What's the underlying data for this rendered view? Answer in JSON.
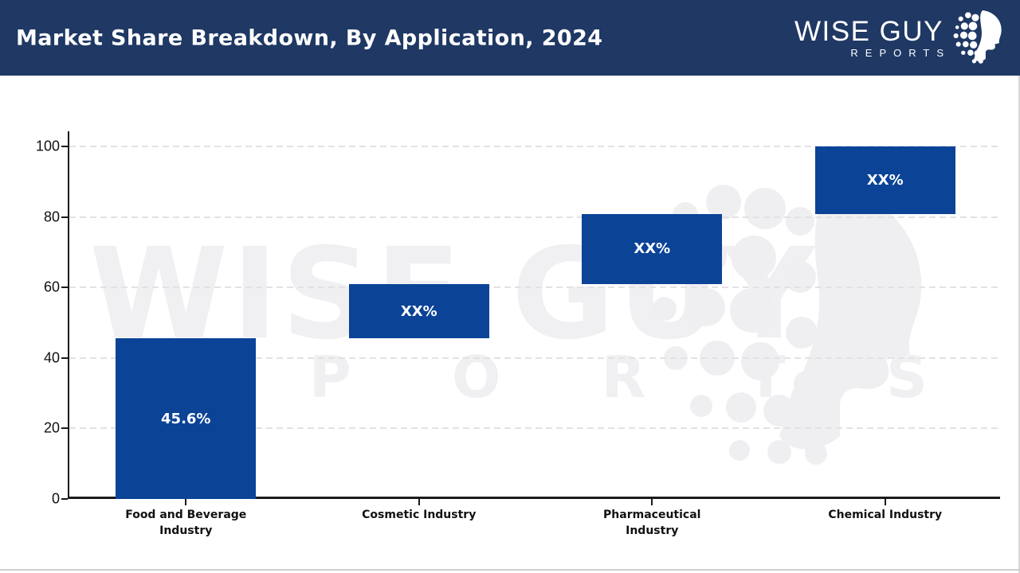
{
  "header": {
    "title": "Market Share Breakdown, By Application, 2024",
    "background": "#1f3864",
    "logo": {
      "line1": "WISE GUY",
      "line2": "REPORTS",
      "head_icon": "dotted-head-profile"
    }
  },
  "watermark": {
    "line1": "WISE GUY",
    "line2": "PORTS"
  },
  "chart_data": {
    "type": "bar",
    "subtype": "floating-segment-waterfall",
    "title": "Market Share Breakdown, By Application, 2024",
    "categories": [
      "Food and Beverage Industry",
      "Cosmetic Industry",
      "Pharmaceutical Industry",
      "Chemical Industry"
    ],
    "segments": [
      {
        "category": "Food and Beverage Industry",
        "start": 0,
        "end": 45.6,
        "label": "45.6%"
      },
      {
        "category": "Cosmetic Industry",
        "start": 45.6,
        "end": 61,
        "label": "XX%"
      },
      {
        "category": "Pharmaceutical Industry",
        "start": 61,
        "end": 81,
        "label": "XX%"
      },
      {
        "category": "Chemical Industry",
        "start": 81,
        "end": 100,
        "label": "XX%"
      }
    ],
    "yticks": [
      0,
      20,
      40,
      60,
      80,
      100
    ],
    "ylim": [
      0,
      104.4
    ],
    "xlabel": "",
    "ylabel": "",
    "grid": "horizontal-dashed",
    "legend": "none",
    "bar_color": "#0b4397",
    "bar_label_color": "#ffffff",
    "axis_color": "#1a1a1a",
    "gridline_color": "#e2e2e4"
  }
}
